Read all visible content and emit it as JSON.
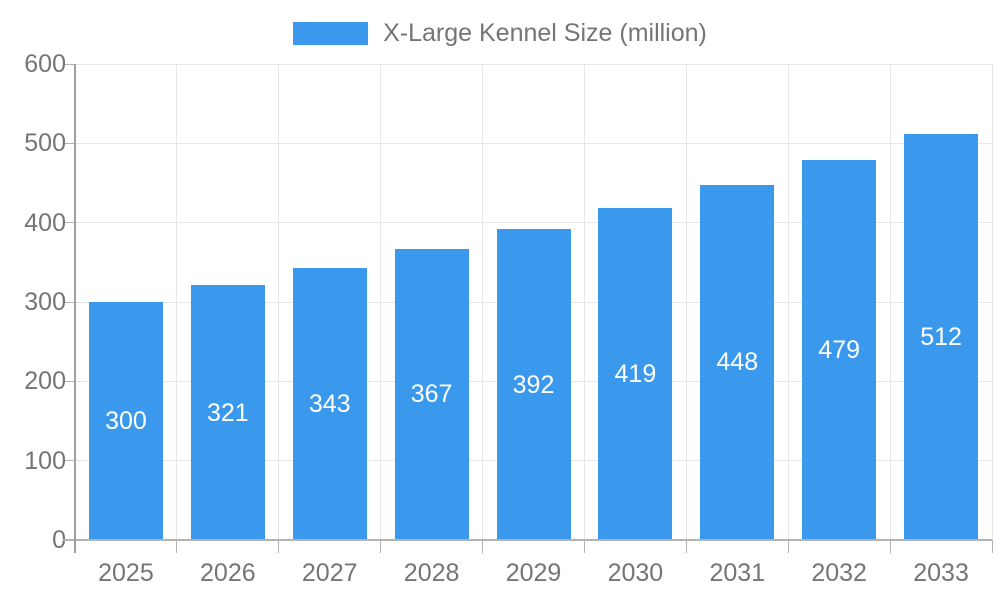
{
  "legend": {
    "label": "X-Large Kennel Size (million)"
  },
  "chart_data": {
    "type": "bar",
    "title": "",
    "categories": [
      "2025",
      "2026",
      "2027",
      "2028",
      "2029",
      "2030",
      "2031",
      "2032",
      "2033"
    ],
    "series": [
      {
        "name": "X-Large Kennel Size (million)",
        "values": [
          300,
          321,
          343,
          367,
          392,
          419,
          448,
          479,
          512
        ]
      }
    ],
    "xlabel": "",
    "ylabel": "",
    "ylim": [
      0,
      600
    ],
    "ytick_step": 100,
    "yticks": [
      0,
      100,
      200,
      300,
      400,
      500,
      600
    ],
    "grid": true,
    "legend_position": "top",
    "bar_labels_inside": true,
    "colors": {
      "bar": "#3b99ed",
      "bar_value_text": "#ffffff",
      "axis_text": "#757575",
      "legend_text": "#757575",
      "gridline": "#e6e6e6",
      "axis_line": "#9e9e9e",
      "baseline": "#b3b3b3",
      "background": "#ffffff"
    }
  }
}
